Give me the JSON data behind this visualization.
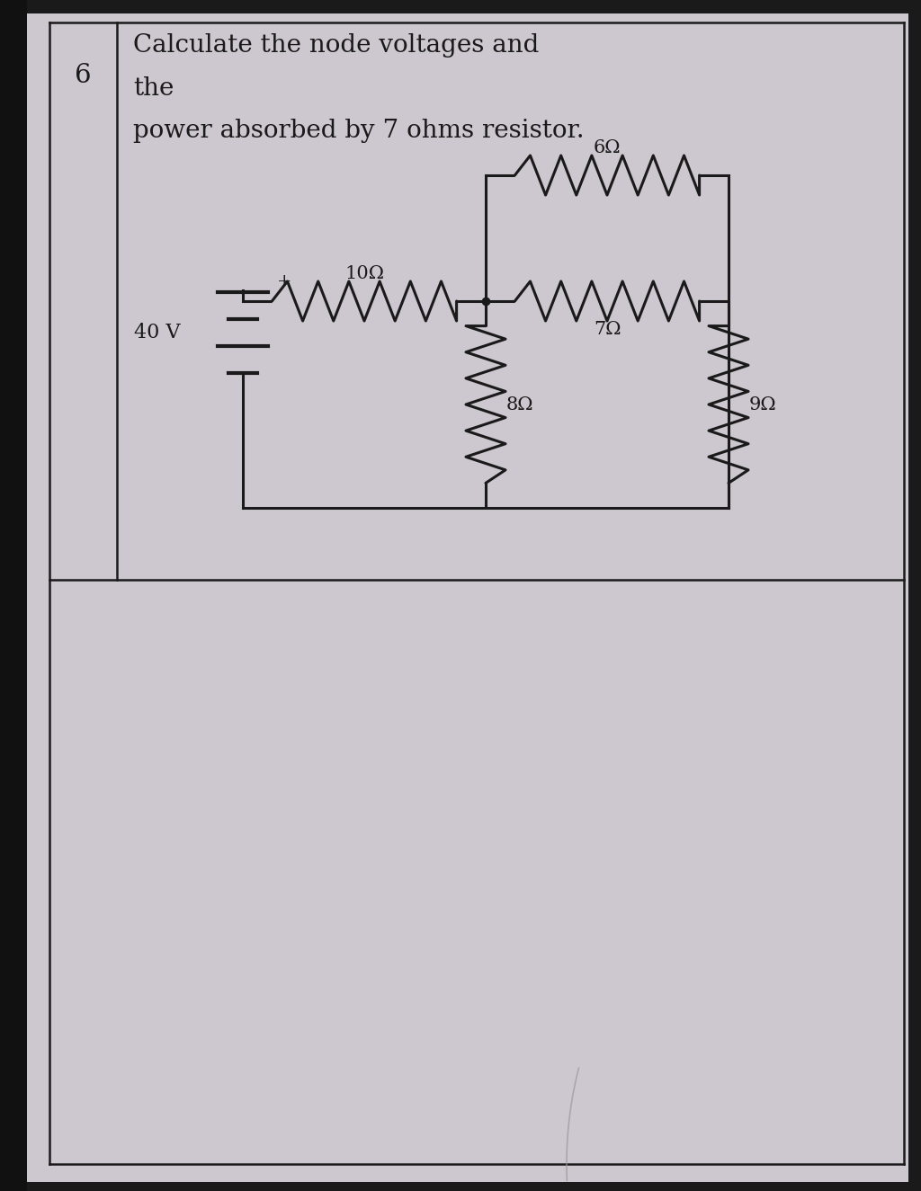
{
  "problem_number": "6",
  "bg_color_outer": "#1a1a1a",
  "bg_color_page": "#cdc8d0",
  "bg_color_top_cell": "#cdc8d0",
  "bg_color_bot_cell": "#cdc8d0",
  "line_color": "#1a1a1a",
  "text_color": "#1a1a1a",
  "title_line1": "Calculate the node voltages and",
  "title_line2": "the",
  "title_line3": "power absorbed by 7 ohms resistor.",
  "source_label": "40 V",
  "label_10": "10Ω",
  "label_6": "6Ω",
  "label_7": "7Ω",
  "label_8": "8Ω",
  "label_9": "9Ω",
  "font_size_title": 20,
  "font_size_labels": 15,
  "font_size_number": 21,
  "font_size_source": 16
}
